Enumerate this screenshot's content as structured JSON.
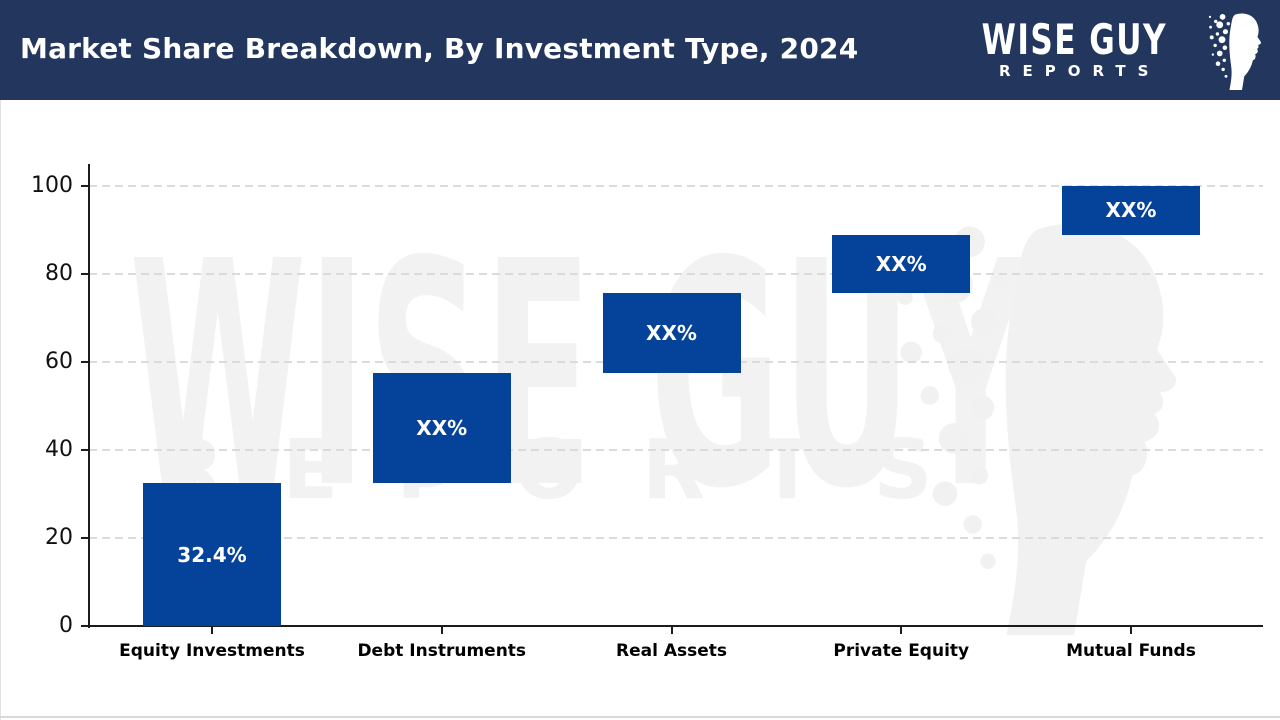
{
  "header": {
    "title": "Market Share Breakdown, By Investment Type, 2024",
    "logo": {
      "line1": "WISE GUY",
      "line2": "REPORTS"
    }
  },
  "watermark": {
    "line1": "WISE GUY",
    "line2": "REPORTS"
  },
  "chart_data": {
    "type": "bar",
    "subtype": "waterfall",
    "title": "Market Share Breakdown, By Investment Type, 2024",
    "categories": [
      "Equity Investments",
      "Debt Instruments",
      "Real Assets",
      "Private Equity",
      "Mutual Funds"
    ],
    "segments": [
      {
        "category": "Equity Investments",
        "start": 0,
        "end": 32.4,
        "value": 32.4,
        "label": "32.4%"
      },
      {
        "category": "Debt Instruments",
        "start": 32.4,
        "end": 57.4,
        "value": 25.0,
        "label": "XX%"
      },
      {
        "category": "Real Assets",
        "start": 57.4,
        "end": 75.6,
        "value": 18.2,
        "label": "XX%"
      },
      {
        "category": "Private Equity",
        "start": 75.6,
        "end": 88.9,
        "value": 13.3,
        "label": "XX%"
      },
      {
        "category": "Mutual Funds",
        "start": 88.9,
        "end": 100,
        "value": 11.1,
        "label": "XX%"
      }
    ],
    "y_ticks": [
      0,
      20,
      40,
      60,
      80,
      100
    ],
    "ylim": [
      0,
      105
    ],
    "xlabel": "",
    "ylabel": "",
    "grid": "horizontal-dashed",
    "legend": "none"
  },
  "colors": {
    "header_bg": "#22365e",
    "bar": "#05439b",
    "bar_label": "#ffffff",
    "axis": "#1c1c1c",
    "grid": "#dbdbdb",
    "watermark": "#f1f1f1"
  }
}
